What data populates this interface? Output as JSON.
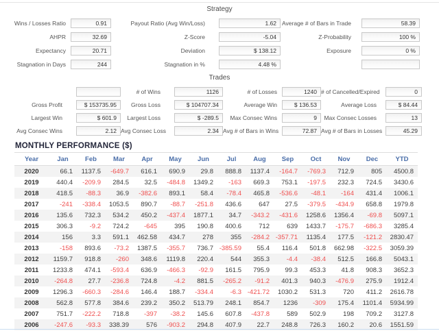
{
  "colors": {
    "negative": "#ef4f4f",
    "header_blue": "#4a6ea9",
    "monthly_title": "#23263a",
    "bottom_line": "#c9ddf0"
  },
  "strategy": {
    "title": "Strategy",
    "rows": [
      [
        {
          "label": "Wins / Losses Ratio",
          "value": "0.91"
        },
        {
          "label": "Payout Ratio (Avg Win/Loss)",
          "value": "1.62"
        },
        {
          "label": "Average # of Bars in Trade",
          "value": "58.39"
        }
      ],
      [
        {
          "label": "AHPR",
          "value": "32.69"
        },
        {
          "label": "Z-Score",
          "value": "-5.04"
        },
        {
          "label": "Z-Probability",
          "value": "100 %"
        }
      ],
      [
        {
          "label": "Expectancy",
          "value": "20.71"
        },
        {
          "label": "Deviation",
          "value": "$ 138.12"
        },
        {
          "label": "Exposure",
          "value": "0 %"
        }
      ],
      [
        {
          "label": "Stagnation in Days",
          "value": "244"
        },
        {
          "label": "Stagnation in %",
          "value": "4.48 %"
        },
        {
          "label": "",
          "value": ""
        }
      ]
    ]
  },
  "trades": {
    "title": "Trades",
    "rows": [
      [
        {
          "label": "",
          "value": ""
        },
        {
          "label": "# of Wins",
          "value": "1126"
        },
        {
          "label": "# of Losses",
          "value": "1240"
        },
        {
          "label": "# of Cancelled/Expired",
          "value": "0"
        }
      ],
      [
        {
          "label": "Gross Profit",
          "value": "$ 153735.95"
        },
        {
          "label": "Gross Loss",
          "value": "$ 104707.34"
        },
        {
          "label": "Average Win",
          "value": "$ 136.53"
        },
        {
          "label": "Average Loss",
          "value": "$ 84.44"
        }
      ],
      [
        {
          "label": "Largest Win",
          "value": "$ 601.9"
        },
        {
          "label": "Largest Loss",
          "value": "$ -289.5"
        },
        {
          "label": "Max Consec Wins",
          "value": "9"
        },
        {
          "label": "Max Consec Losses",
          "value": "13"
        }
      ],
      [
        {
          "label": "Avg Consec Wins",
          "value": "2.12"
        },
        {
          "label": "Avg Consec Loss",
          "value": "2.34"
        },
        {
          "label": "Avg # of Bars in Wins",
          "value": "72.87"
        },
        {
          "label": "Avg # of Bars in Losses",
          "value": "45.29"
        }
      ]
    ]
  },
  "monthly": {
    "title": "MONTHLY PERFORMANCE ($)",
    "columns": [
      "Year",
      "Jan",
      "Feb",
      "Mar",
      "Apr",
      "May",
      "Jun",
      "Jul",
      "Aug",
      "Sep",
      "Oct",
      "Nov",
      "Dec",
      "YTD"
    ],
    "rows": [
      {
        "year": "2020",
        "values": [
          "66.1",
          "1137.5",
          "-649.7",
          "616.1",
          "690.9",
          "29.8",
          "888.8",
          "1137.4",
          "-164.7",
          "-769.3",
          "712.9",
          "805",
          "4500.8"
        ]
      },
      {
        "year": "2019",
        "values": [
          "440.4",
          "-209.9",
          "284.5",
          "32.5",
          "-484.8",
          "1349.2",
          "-163",
          "669.3",
          "753.1",
          "-197.5",
          "232.3",
          "724.5",
          "3430.6"
        ]
      },
      {
        "year": "2018",
        "values": [
          "418.5",
          "-88.3",
          "36.9",
          "-382.6",
          "893.1",
          "58.4",
          "-78.4",
          "465.8",
          "-536.6",
          "-48.1",
          "-164",
          "431.4",
          "1006.1"
        ]
      },
      {
        "year": "2017",
        "values": [
          "-241",
          "-338.4",
          "1053.5",
          "890.7",
          "-88.7",
          "-251.8",
          "436.6",
          "647",
          "27.5",
          "-379.5",
          "-434.9",
          "658.8",
          "1979.8"
        ]
      },
      {
        "year": "2016",
        "values": [
          "135.6",
          "732.3",
          "534.2",
          "450.2",
          "-437.4",
          "1877.1",
          "34.7",
          "-343.2",
          "-431.6",
          "1258.6",
          "1356.4",
          "-69.8",
          "5097.1"
        ]
      },
      {
        "year": "2015",
        "values": [
          "306.3",
          "-9.2",
          "724.2",
          "-645",
          "395",
          "190.8",
          "400.6",
          "712",
          "639",
          "1433.7",
          "-175.7",
          "-686.3",
          "3285.4"
        ]
      },
      {
        "year": "2014",
        "values": [
          "156",
          "3.3",
          "591.1",
          "462.58",
          "434.7",
          "278",
          "355",
          "-284.2",
          "-357.71",
          "1135.4",
          "177.5",
          "-121.2",
          "2830.47"
        ]
      },
      {
        "year": "2013",
        "values": [
          "-158",
          "893.6",
          "-73.2",
          "1387.5",
          "-355.7",
          "736.7",
          "-385.59",
          "55.4",
          "116.4",
          "501.8",
          "662.98",
          "-322.5",
          "3059.39"
        ]
      },
      {
        "year": "2012",
        "values": [
          "1159.7",
          "918.8",
          "-260",
          "348.6",
          "1119.8",
          "220.4",
          "544",
          "355.3",
          "-4.4",
          "-38.4",
          "512.5",
          "166.8",
          "5043.1"
        ]
      },
      {
        "year": "2011",
        "values": [
          "1233.8",
          "474.1",
          "-593.4",
          "636.9",
          "-466.3",
          "-92.9",
          "161.5",
          "795.9",
          "99.3",
          "453.3",
          "41.8",
          "908.3",
          "3652.3"
        ]
      },
      {
        "year": "2010",
        "values": [
          "-264.8",
          "27.7",
          "-236.8",
          "724.8",
          "-4.2",
          "881.5",
          "-265.2",
          "-91.2",
          "401.3",
          "940.3",
          "-476.9",
          "275.9",
          "1912.4"
        ]
      },
      {
        "year": "2009",
        "values": [
          "1296.3",
          "-660.3",
          "-284.6",
          "146.4",
          "188.7",
          "-334.4",
          "-6.3",
          "-421.72",
          "1030.2",
          "531.3",
          "720",
          "411.2",
          "2616.78"
        ]
      },
      {
        "year": "2008",
        "values": [
          "562.8",
          "577.8",
          "384.6",
          "239.2",
          "350.2",
          "513.79",
          "248.1",
          "854.7",
          "1236",
          "-309",
          "175.4",
          "1101.4",
          "5934.99"
        ]
      },
      {
        "year": "2007",
        "values": [
          "751.7",
          "-222.2",
          "718.8",
          "-397",
          "-38.2",
          "145.6",
          "607.8",
          "-437.8",
          "589",
          "502.9",
          "198",
          "709.2",
          "3127.8"
        ]
      },
      {
        "year": "2006",
        "values": [
          "-247.6",
          "-93.3",
          "338.39",
          "576",
          "-903.2",
          "294.8",
          "407.9",
          "22.7",
          "248.8",
          "726.3",
          "160.2",
          "20.6",
          "1551.59"
        ]
      }
    ]
  }
}
